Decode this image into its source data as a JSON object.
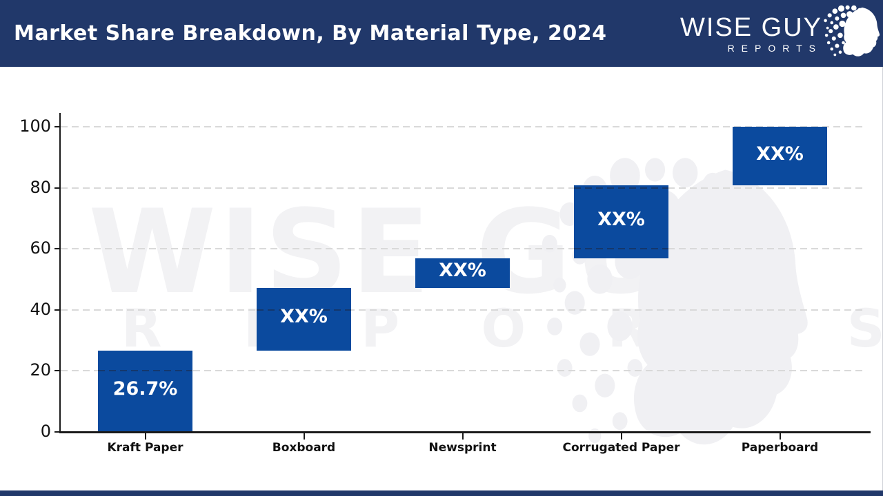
{
  "header": {
    "title": "Market Share Breakdown, By Material Type, 2024",
    "logo": {
      "line1": "WISE GUY",
      "line2": "REPORTS"
    },
    "bg_color": "#21386A"
  },
  "watermark": {
    "line1": "WISE GUY",
    "line2": "REPORTS"
  },
  "chart_data": {
    "type": "bar",
    "subtype": "floating-waterfall",
    "title": "Market Share Breakdown, By Material Type, 2024",
    "xlabel": "",
    "ylabel": "",
    "ylim": [
      0,
      100
    ],
    "yticks": [
      0,
      20,
      40,
      60,
      80,
      100
    ],
    "grid": "horizontal-dashed",
    "legend": "none",
    "bar_color": "#0B4A9E",
    "bar_label_color": "#FFFFFF",
    "categories": [
      "Kraft Paper",
      "Boxboard",
      "Newsprint",
      "Corrugated Paper",
      "Paperboard"
    ],
    "series": [
      {
        "name": "Market Share",
        "segments": [
          {
            "category": "Kraft Paper",
            "start": 0,
            "end": 26.7,
            "label": "26.7%"
          },
          {
            "category": "Boxboard",
            "start": 26.7,
            "end": 47.3,
            "label": "XX%"
          },
          {
            "category": "Newsprint",
            "start": 47.3,
            "end": 56.9,
            "label": "XX%"
          },
          {
            "category": "Corrugated Paper",
            "start": 56.9,
            "end": 80.9,
            "label": "XX%"
          },
          {
            "category": "Paperboard",
            "start": 80.9,
            "end": 100,
            "label": "XX%"
          }
        ]
      }
    ]
  }
}
